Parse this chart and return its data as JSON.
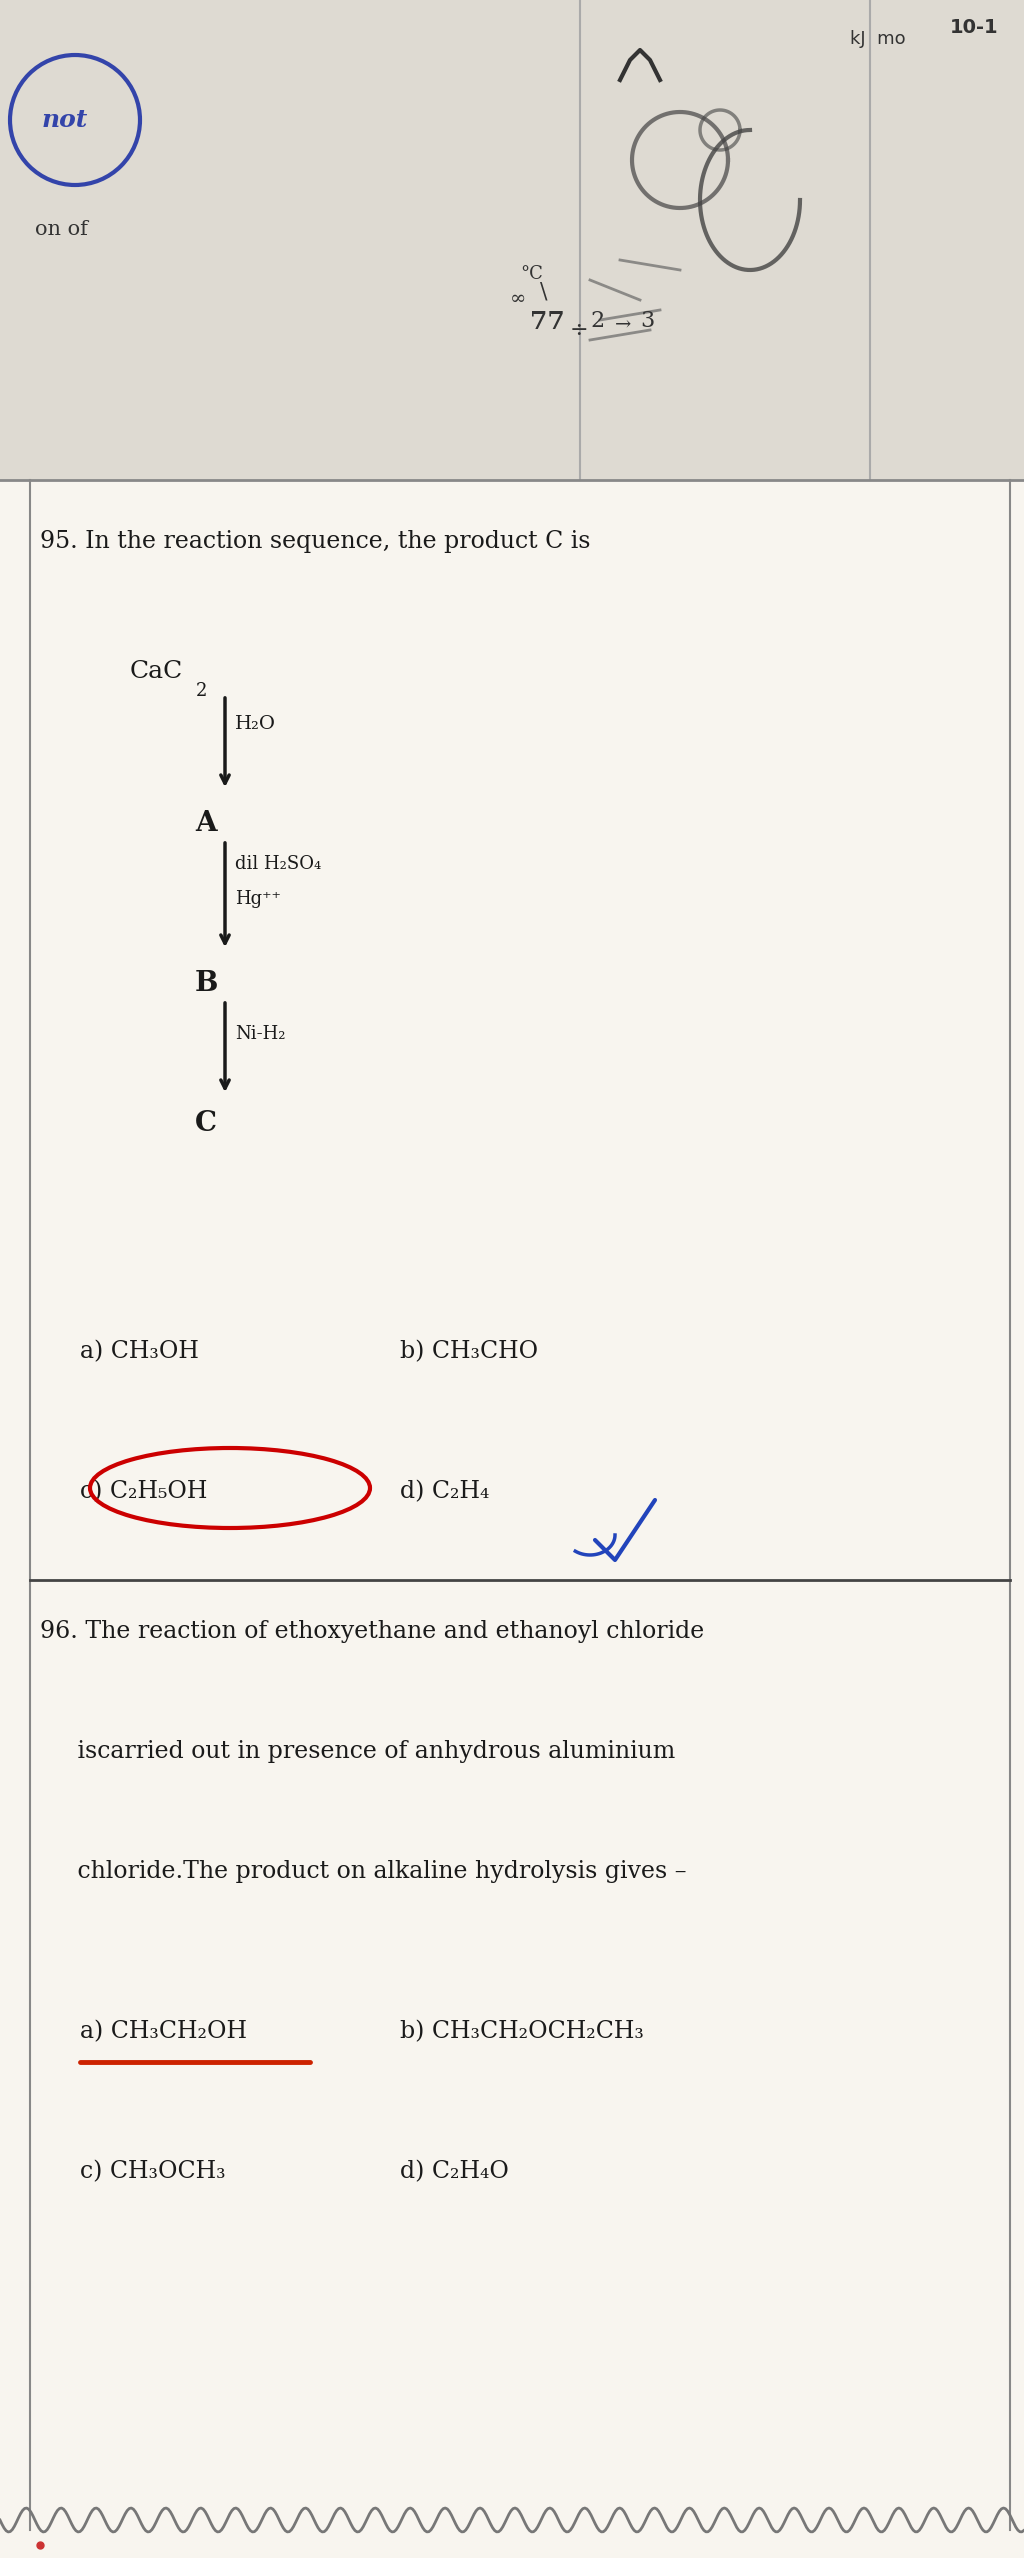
{
  "bg_color": "#e8e5de",
  "paper_color": "#f0ede6",
  "white_box_color": "#f8f5ef",
  "q95_text": "95. In the reaction sequence, the product C is",
  "cac2": "CaC",
  "sub2": "2",
  "h2o_label": "H₂O",
  "label_A": "A",
  "dil_h2so4": "dil H₂SO₄",
  "hg_label": "Hg⁺⁺",
  "label_B": "B",
  "ni_h2": "Ni-H₂",
  "label_C": "C",
  "options_95": [
    "a) CH₃OH",
    "b) CH₃CHO",
    "c) C₂H₅OH",
    "d) C₂H₄"
  ],
  "q96_line1": "96. The reaction of ethoxyethane and ethanoyl chloride",
  "q96_line2": "     iscarried out in presence of anhydrous aluminium",
  "q96_line3": "     chloride.The product on alkaline hydrolysis gives –",
  "options_96": [
    "a) CH₃CH₂OH",
    "b) CH₃CH₂OCH₂CH₃",
    "c) CH₃OCH₃",
    "d) C₂H₄O"
  ],
  "correct_95_idx": 2,
  "correct_96_idx": 0,
  "circle_color": "#cc0000",
  "underline_color": "#cc2200",
  "tick_color": "#2244bb",
  "text_color": "#1a1a1a",
  "top_text_color": "#333333",
  "not_circle_color": "#3344aa",
  "top_margin_color": "#dedad2"
}
